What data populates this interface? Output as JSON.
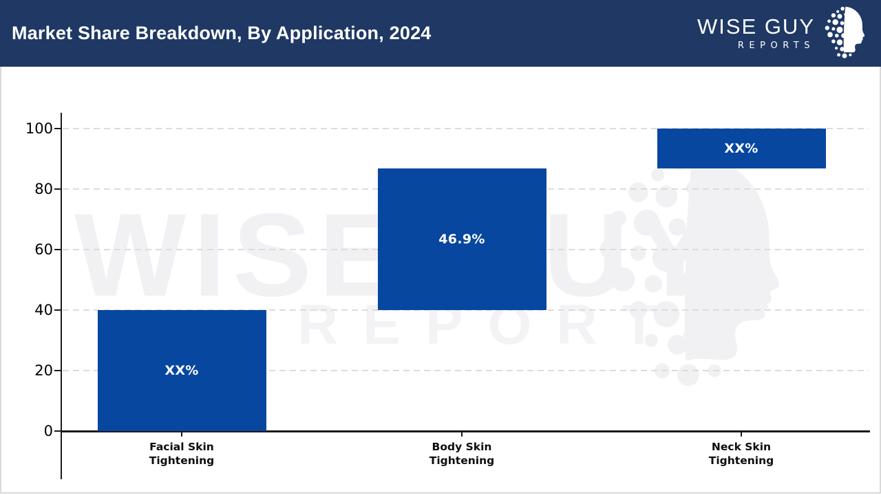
{
  "header": {
    "title": "Market Share Breakdown, By Application, 2024",
    "logo_line1": "WISE GUY",
    "logo_line2": "REPORTS"
  },
  "watermark": {
    "word1": "WISE GUY",
    "word2": "REPORTS"
  },
  "colors": {
    "header_bg": "#1f3864",
    "bar": "#0847a0",
    "grid": "#dcdcdc",
    "axis": "#1a1a1a",
    "bar_label": "#ffffff",
    "watermark": "#f1f1f3"
  },
  "chart_data": {
    "type": "bar",
    "subtype": "waterfall",
    "title": "Market Share Breakdown, By Application, 2024",
    "categories": [
      [
        "Facial Skin",
        "Tightening"
      ],
      [
        "Body Skin",
        "Tightening"
      ],
      [
        "Neck Skin",
        "Tightening"
      ]
    ],
    "bars": [
      {
        "category": "Facial Skin Tightening",
        "label": "XX%",
        "start": 0,
        "end": 40
      },
      {
        "category": "Body Skin Tightening",
        "label": "46.9%",
        "start": 40,
        "end": 86.9
      },
      {
        "category": "Neck Skin Tightening",
        "label": "XX%",
        "start": 86.9,
        "end": 100
      }
    ],
    "yticks": [
      0,
      20,
      40,
      60,
      80,
      100
    ],
    "ylim": [
      0,
      100
    ],
    "xlabel": "",
    "ylabel": "",
    "grid": "horizontal-dashed",
    "legend": "none"
  }
}
